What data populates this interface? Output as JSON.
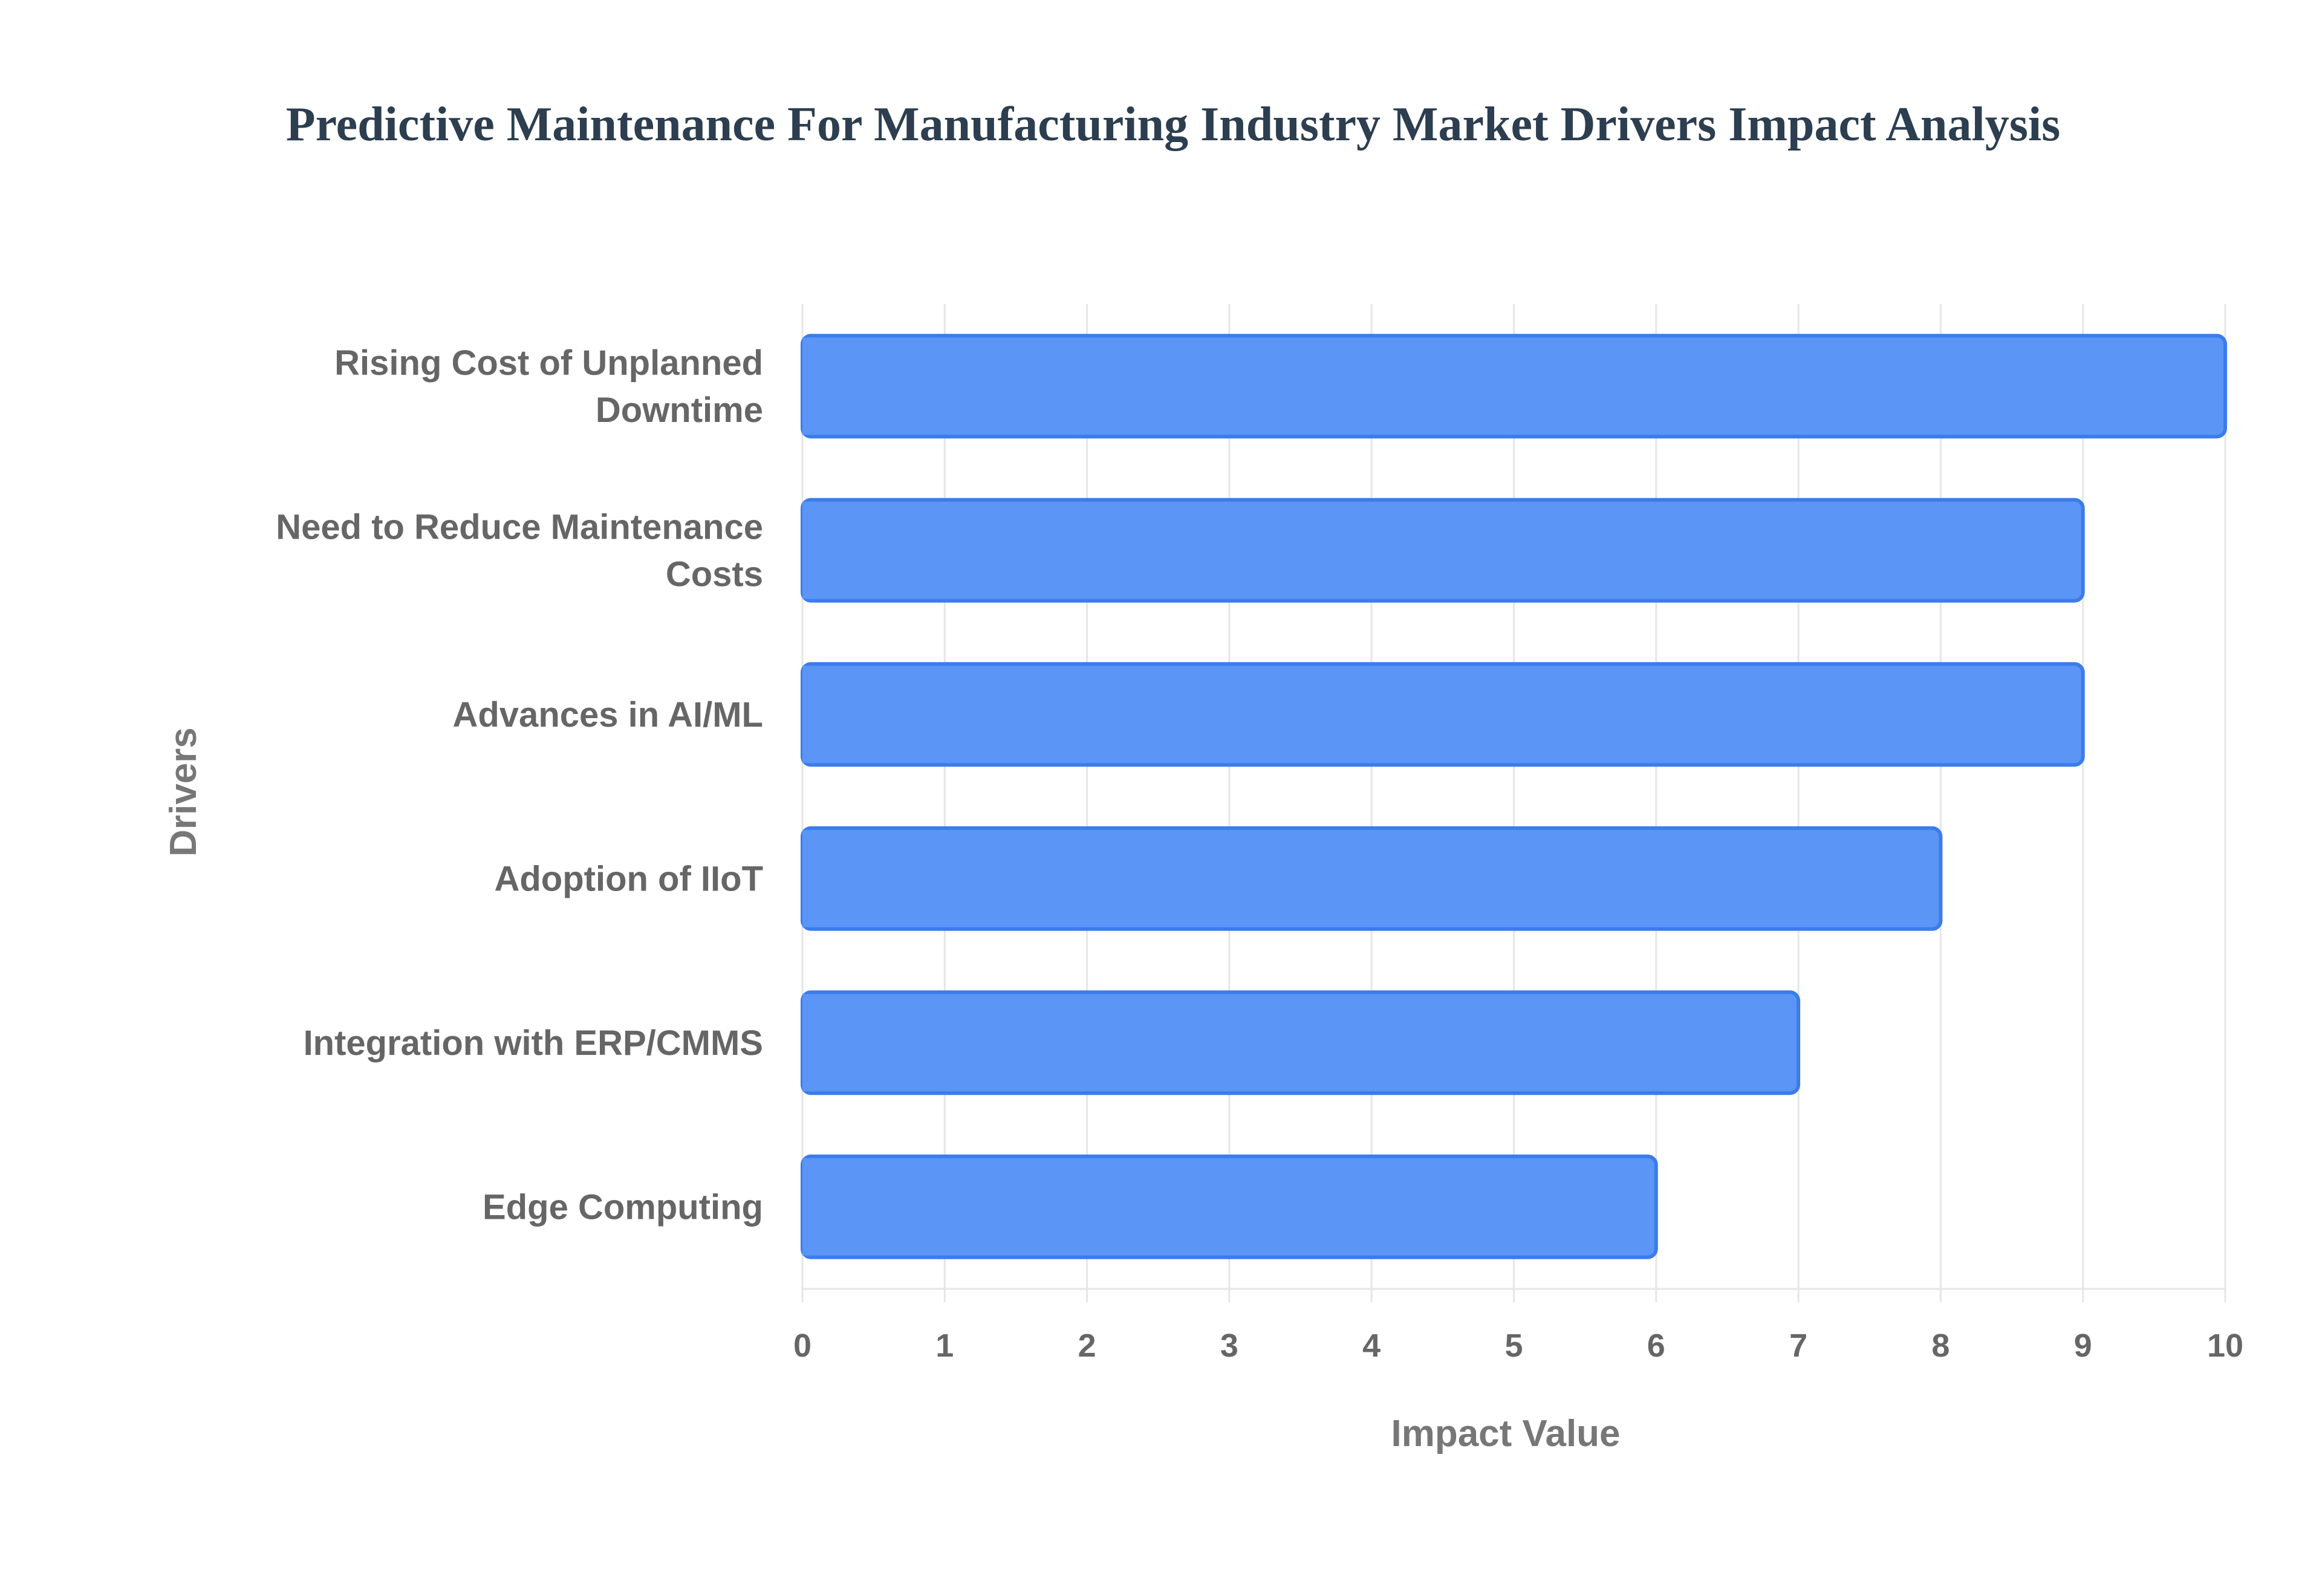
{
  "colors": {
    "title": "#2c3e50",
    "bar_fill": "#5b95f5",
    "bar_stroke": "#3b7cec",
    "grid": "#e6e6e6",
    "label": "#666666",
    "axis_title": "#777777"
  },
  "chart_data": {
    "type": "bar",
    "orientation": "horizontal",
    "title": "Predictive Maintenance For Manufacturing Industry Market Drivers Impact Analysis",
    "xlabel": "Impact Value",
    "ylabel": "Drivers",
    "xlim": [
      0,
      10
    ],
    "xticks": [
      "0",
      "1",
      "2",
      "3",
      "4",
      "5",
      "6",
      "7",
      "8",
      "9",
      "10"
    ],
    "grid": true,
    "categories": [
      "Rising Cost of Unplanned Downtime",
      "Need to Reduce Maintenance Costs",
      "Advances in AI/ML",
      "Adoption of IIoT",
      "Integration with ERP/CMMS",
      "Edge Computing"
    ],
    "category_lines": [
      [
        "Rising Cost of Unplanned",
        "Downtime"
      ],
      [
        "Need to Reduce Maintenance",
        "Costs"
      ],
      [
        "Advances in AI/ML"
      ],
      [
        "Adoption of IIoT"
      ],
      [
        "Integration with ERP/CMMS"
      ],
      [
        "Edge Computing"
      ]
    ],
    "values": [
      10,
      9,
      9,
      8,
      7,
      6
    ]
  }
}
